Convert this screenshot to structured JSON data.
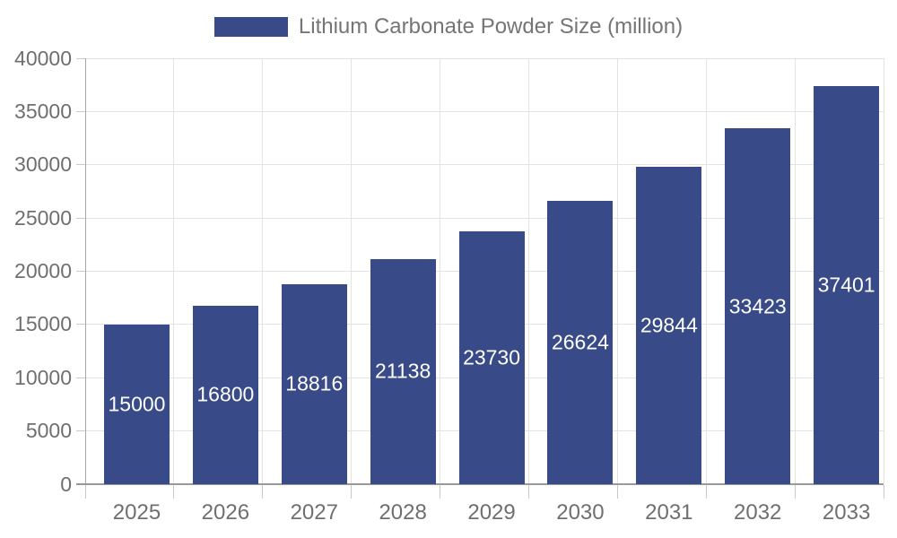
{
  "chart_data": {
    "type": "bar",
    "title": "",
    "legend": "Lithium Carbonate Powder Size (million)",
    "legend_position": "top-center",
    "categories": [
      "2025",
      "2026",
      "2027",
      "2028",
      "2029",
      "2030",
      "2031",
      "2032",
      "2033"
    ],
    "series": [
      {
        "name": "Lithium Carbonate Powder Size (million)",
        "values": [
          15000,
          16800,
          18816,
          21138,
          23730,
          26624,
          29844,
          33423,
          37401
        ]
      }
    ],
    "xlabel": "",
    "ylabel": "",
    "ylim": [
      0,
      40000
    ],
    "ytick_step": 5000,
    "yticks": [
      0,
      5000,
      10000,
      15000,
      20000,
      25000,
      30000,
      35000,
      40000
    ],
    "grid": true,
    "bar_value_labels": "inside-center",
    "colors": {
      "bar": "#394A88",
      "bar_value_label": "#ffffff",
      "legend_text": "#757575",
      "axis_text": "#6f6f6f",
      "gridline": "#e3e3e3",
      "x_axis_line": "#999999",
      "y_axis_line": "#a6a6a6",
      "tick": "#c9c9c9",
      "background": "#ffffff"
    }
  }
}
